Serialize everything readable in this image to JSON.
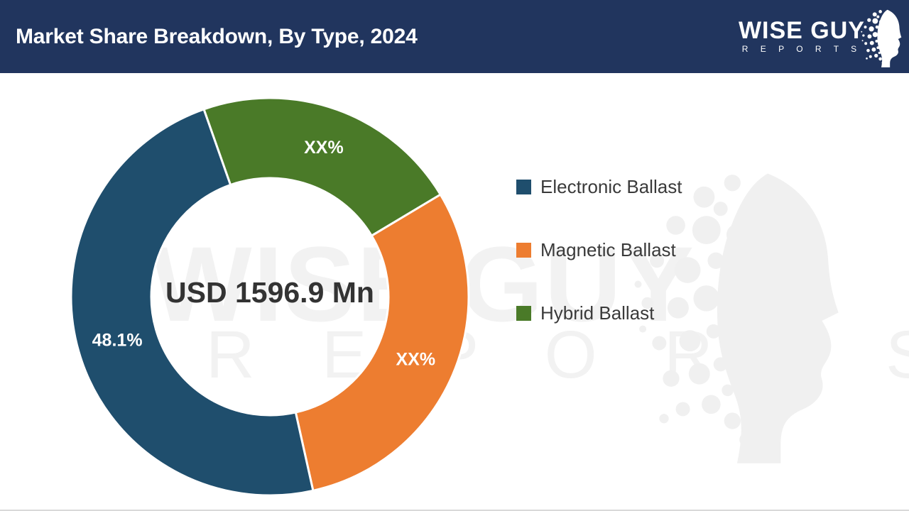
{
  "header": {
    "title": "Market Share Breakdown, By Type, 2024",
    "bg_color": "#21355E",
    "brand": {
      "line1": "WISE GUY",
      "line2": "R E P O R T S"
    }
  },
  "watermark": {
    "line1": "WISE GUY",
    "line2": "R E P O R T S"
  },
  "chart_data": {
    "type": "pie",
    "subtype": "donut",
    "title": "Market Share Breakdown, By Type, 2024",
    "center_label": "USD 1596.9 Mn",
    "start_angle_deg": -19.4,
    "direction": "clockwise",
    "outer_radius_px": 280,
    "inner_radius_ratio": 0.596,
    "segments": [
      {
        "name": "Hybrid Ballast",
        "value_pct": 21.8,
        "display_label": "XX%",
        "color": "#4A7A28"
      },
      {
        "name": "Magnetic Ballast",
        "value_pct": 30.1,
        "display_label": "XX%",
        "color": "#ED7D30"
      },
      {
        "name": "Electronic Ballast",
        "value_pct": 48.1,
        "display_label": "48.1%",
        "color": "#1F4E6D"
      }
    ],
    "legend_position": "right",
    "grid": false
  },
  "legend": {
    "items": [
      {
        "label": "Electronic Ballast",
        "color": "#1F4E6D"
      },
      {
        "label": "Magnetic Ballast",
        "color": "#ED7D30"
      },
      {
        "label": "Hybrid Ballast",
        "color": "#4A7A28"
      }
    ]
  },
  "colors": {
    "header_bg": "#21355E",
    "center_text": "#333333",
    "watermark": "#F2F2F2",
    "bottom_border": "#D9D9D9"
  }
}
